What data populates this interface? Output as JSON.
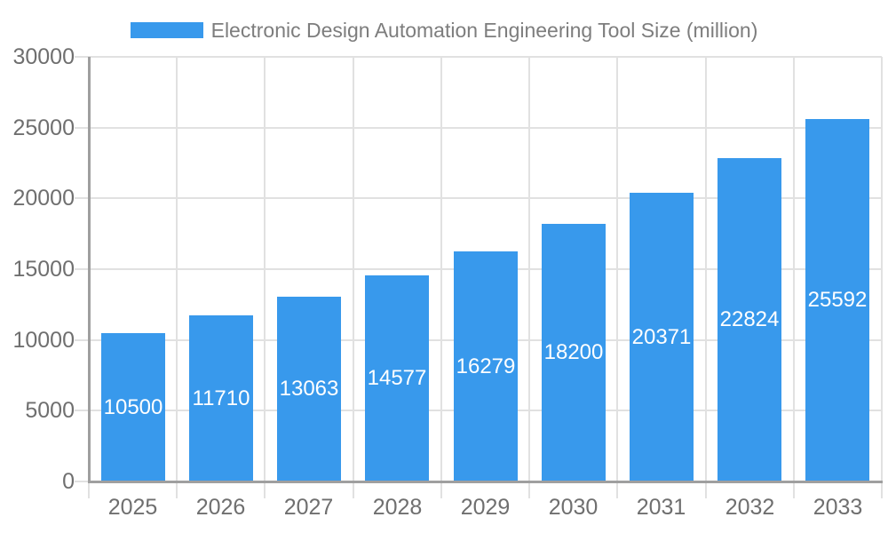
{
  "legend": {
    "label": "Electronic Design Automation Engineering Tool Size (million)"
  },
  "chart_data": {
    "type": "bar",
    "title": "Electronic Design Automation Engineering Tool Size (million)",
    "categories": [
      "2025",
      "2026",
      "2027",
      "2028",
      "2029",
      "2030",
      "2031",
      "2032",
      "2033"
    ],
    "values": [
      10500,
      11710,
      13063,
      14577,
      16279,
      18200,
      20371,
      22824,
      25592
    ],
    "xlabel": "",
    "ylabel": "",
    "ylim": [
      0,
      30000
    ],
    "yticks": [
      0,
      5000,
      10000,
      15000,
      20000,
      25000,
      30000
    ],
    "grid": true,
    "legend_position": "top-center",
    "value_label_position": "inside-center",
    "colors": {
      "bar": "#3899EC",
      "axis_line": "#9f9f9f",
      "grid_line": "#e1e1e1",
      "tick_label": "#6f6f6f",
      "legend_text": "#7d7d7d",
      "value_label": "#ffffff",
      "background": "#ffffff"
    }
  }
}
